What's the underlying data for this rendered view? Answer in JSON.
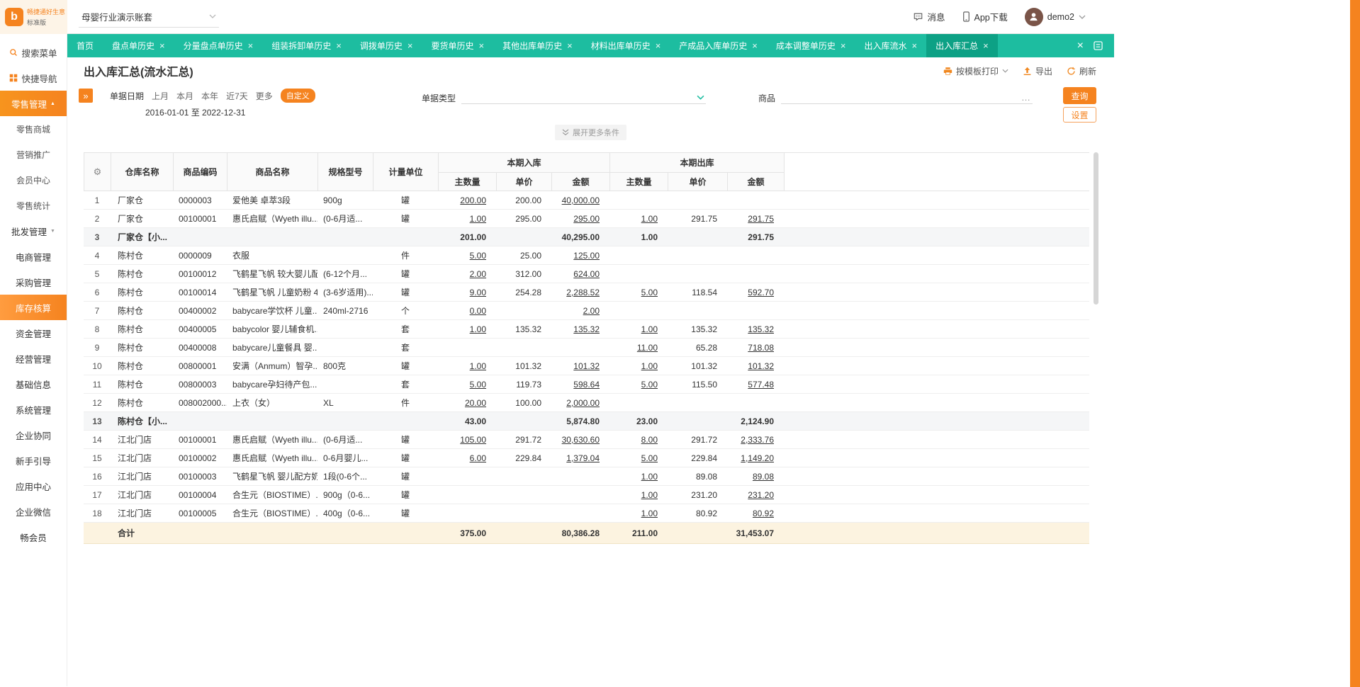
{
  "topbar": {
    "logo_title": "畅捷通好生意",
    "logo_badge": "标准版",
    "account_select": "母婴行业演示账套",
    "messages": "消息",
    "app_download": "App下载",
    "user": "demo2"
  },
  "tabs": [
    {
      "label": "首页",
      "closable": false,
      "active": false
    },
    {
      "label": "盘点单历史",
      "closable": true,
      "active": false
    },
    {
      "label": "分量盘点单历史",
      "closable": true,
      "active": false
    },
    {
      "label": "组装拆卸单历史",
      "closable": true,
      "active": false
    },
    {
      "label": "调拨单历史",
      "closable": true,
      "active": false
    },
    {
      "label": "要货单历史",
      "closable": true,
      "active": false
    },
    {
      "label": "其他出库单历史",
      "closable": true,
      "active": false
    },
    {
      "label": "材料出库单历史",
      "closable": true,
      "active": false
    },
    {
      "label": "产成品入库单历史",
      "closable": true,
      "active": false
    },
    {
      "label": "成本调整单历史",
      "closable": true,
      "active": false
    },
    {
      "label": "出入库流水",
      "closable": true,
      "active": false
    },
    {
      "label": "出入库汇总",
      "closable": true,
      "active": true
    }
  ],
  "sidebar": {
    "items": [
      {
        "label": "搜索菜单",
        "icon": "search",
        "type": "tool"
      },
      {
        "label": "快捷导航",
        "icon": "grid",
        "type": "tool"
      },
      {
        "label": "零售管理",
        "type": "group-open"
      },
      {
        "label": "零售商城",
        "type": "sub"
      },
      {
        "label": "营销推广",
        "type": "sub"
      },
      {
        "label": "会员中心",
        "type": "sub"
      },
      {
        "label": "零售统计",
        "type": "sub"
      },
      {
        "label": "批发管理",
        "type": "group-closed"
      },
      {
        "label": "电商管理",
        "type": "item"
      },
      {
        "label": "采购管理",
        "type": "item"
      },
      {
        "label": "库存核算",
        "type": "active"
      },
      {
        "label": "资金管理",
        "type": "item"
      },
      {
        "label": "经营管理",
        "type": "item"
      },
      {
        "label": "基础信息",
        "type": "item"
      },
      {
        "label": "系统管理",
        "type": "item"
      },
      {
        "label": "企业协同",
        "type": "item"
      },
      {
        "label": "新手引导",
        "type": "item"
      },
      {
        "label": "应用中心",
        "type": "item"
      },
      {
        "label": "企业微信",
        "type": "item"
      },
      {
        "label": "畅会员",
        "type": "item"
      }
    ]
  },
  "page": {
    "title": "出入库汇总(流水汇总)",
    "actions": {
      "print": "按模板打印",
      "export": "导出",
      "refresh": "刷新"
    }
  },
  "filters": {
    "date_label": "单据日期",
    "date_options": [
      "上月",
      "本月",
      "本年",
      "近7天",
      "更多"
    ],
    "custom_badge": "自定义",
    "date_range": "2016-01-01 至 2022-12-31",
    "doc_type_label": "单据类型",
    "product_label": "商品",
    "search_button": "查询",
    "settings_button": "设置",
    "expand_more": "展开更多条件"
  },
  "table": {
    "headers": {
      "warehouse": "仓库名称",
      "code": "商品编码",
      "name": "商品名称",
      "spec": "规格型号",
      "unit": "计量单位",
      "in_group": "本期入库",
      "out_group": "本期出库",
      "qty": "主数量",
      "price": "单价",
      "amount": "金额"
    },
    "rows": [
      {
        "idx": "1",
        "warehouse": "厂家仓",
        "code": "0000003",
        "name": "爱他美 卓萃3段",
        "spec": "900g",
        "unit": "罐",
        "in_qty": "200.00",
        "in_price": "200.00",
        "in_amount": "40,000.00",
        "out_qty": "",
        "out_price": "",
        "out_amount": ""
      },
      {
        "idx": "2",
        "warehouse": "厂家仓",
        "code": "00100001",
        "name": "惠氏启赋（Wyeth illu...",
        "spec": "(0-6月适...",
        "unit": "罐",
        "in_qty": "1.00",
        "in_price": "295.00",
        "in_amount": "295.00",
        "out_qty": "1.00",
        "out_price": "291.75",
        "out_amount": "291.75"
      },
      {
        "idx": "3",
        "type": "subtotal",
        "warehouse": "厂家仓【小...",
        "code": "",
        "name": "",
        "spec": "",
        "unit": "",
        "in_qty": "201.00",
        "in_price": "",
        "in_amount": "40,295.00",
        "out_qty": "1.00",
        "out_price": "",
        "out_amount": "291.75"
      },
      {
        "idx": "4",
        "warehouse": "陈村仓",
        "code": "0000009",
        "name": "衣服",
        "spec": "",
        "unit": "件",
        "in_qty": "5.00",
        "in_price": "25.00",
        "in_amount": "125.00",
        "out_qty": "",
        "out_price": "",
        "out_amount": ""
      },
      {
        "idx": "5",
        "warehouse": "陈村仓",
        "code": "00100012",
        "name": "飞鹤星飞帆 较大婴儿配...",
        "spec": "(6-12个月...",
        "unit": "罐",
        "in_qty": "2.00",
        "in_price": "312.00",
        "in_amount": "624.00",
        "out_qty": "",
        "out_price": "",
        "out_amount": ""
      },
      {
        "idx": "6",
        "warehouse": "陈村仓",
        "code": "00100014",
        "name": "飞鹤星飞帆 儿童奶粉 4...",
        "spec": "(3-6岁适用)...",
        "unit": "罐",
        "in_qty": "9.00",
        "in_price": "254.28",
        "in_amount": "2,288.52",
        "out_qty": "5.00",
        "out_price": "118.54",
        "out_amount": "592.70"
      },
      {
        "idx": "7",
        "warehouse": "陈村仓",
        "code": "00400002",
        "name": "babycare学饮杯 儿童...",
        "spec": "240ml-2716",
        "unit": "个",
        "in_qty": "0.00",
        "in_price": "",
        "in_amount": "2.00",
        "out_qty": "",
        "out_price": "",
        "out_amount": ""
      },
      {
        "idx": "8",
        "warehouse": "陈村仓",
        "code": "00400005",
        "name": "babycolor 婴儿辅食机...",
        "spec": "",
        "unit": "套",
        "in_qty": "1.00",
        "in_price": "135.32",
        "in_amount": "135.32",
        "out_qty": "1.00",
        "out_price": "135.32",
        "out_amount": "135.32"
      },
      {
        "idx": "9",
        "warehouse": "陈村仓",
        "code": "00400008",
        "name": "babycare儿童餐具 婴...",
        "spec": "",
        "unit": "套",
        "in_qty": "",
        "in_price": "",
        "in_amount": "",
        "out_qty": "11.00",
        "out_price": "65.28",
        "out_amount": "718.08"
      },
      {
        "idx": "10",
        "warehouse": "陈村仓",
        "code": "00800001",
        "name": "安满（Anmum）智孕...",
        "spec": "800克",
        "unit": "罐",
        "in_qty": "1.00",
        "in_price": "101.32",
        "in_amount": "101.32",
        "out_qty": "1.00",
        "out_price": "101.32",
        "out_amount": "101.32"
      },
      {
        "idx": "11",
        "warehouse": "陈村仓",
        "code": "00800003",
        "name": "babycare孕妇待产包...",
        "spec": "",
        "unit": "套",
        "in_qty": "5.00",
        "in_price": "119.73",
        "in_amount": "598.64",
        "out_qty": "5.00",
        "out_price": "115.50",
        "out_amount": "577.48"
      },
      {
        "idx": "12",
        "warehouse": "陈村仓",
        "code": "008002000...",
        "name": "上衣（女）",
        "spec": "XL",
        "unit": "件",
        "in_qty": "20.00",
        "in_price": "100.00",
        "in_amount": "2,000.00",
        "out_qty": "",
        "out_price": "",
        "out_amount": ""
      },
      {
        "idx": "13",
        "type": "subtotal",
        "warehouse": "陈村仓【小...",
        "code": "",
        "name": "",
        "spec": "",
        "unit": "",
        "in_qty": "43.00",
        "in_price": "",
        "in_amount": "5,874.80",
        "out_qty": "23.00",
        "out_price": "",
        "out_amount": "2,124.90"
      },
      {
        "idx": "14",
        "warehouse": "江北门店",
        "code": "00100001",
        "name": "惠氏启赋（Wyeth illu...",
        "spec": "(0-6月适...",
        "unit": "罐",
        "in_qty": "105.00",
        "in_price": "291.72",
        "in_amount": "30,630.60",
        "out_qty": "8.00",
        "out_price": "291.72",
        "out_amount": "2,333.76"
      },
      {
        "idx": "15",
        "warehouse": "江北门店",
        "code": "00100002",
        "name": "惠氏启赋（Wyeth illu...",
        "spec": "0-6月婴儿...",
        "unit": "罐",
        "in_qty": "6.00",
        "in_price": "229.84",
        "in_amount": "1,379.04",
        "out_qty": "5.00",
        "out_price": "229.84",
        "out_amount": "1,149.20"
      },
      {
        "idx": "16",
        "warehouse": "江北门店",
        "code": "00100003",
        "name": "飞鹤星飞帆 婴儿配方奶...",
        "spec": "1段(0-6个...",
        "unit": "罐",
        "in_qty": "",
        "in_price": "",
        "in_amount": "",
        "out_qty": "1.00",
        "out_price": "89.08",
        "out_amount": "89.08"
      },
      {
        "idx": "17",
        "warehouse": "江北门店",
        "code": "00100004",
        "name": "合生元（BIOSTIME）...",
        "spec": "900g（0-6...",
        "unit": "罐",
        "in_qty": "",
        "in_price": "",
        "in_amount": "",
        "out_qty": "1.00",
        "out_price": "231.20",
        "out_amount": "231.20"
      },
      {
        "idx": "18",
        "warehouse": "江北门店",
        "code": "00100005",
        "name": "合生元（BIOSTIME）...",
        "spec": "400g（0-6...",
        "unit": "罐",
        "in_qty": "",
        "in_price": "",
        "in_amount": "",
        "out_qty": "1.00",
        "out_price": "80.92",
        "out_amount": "80.92"
      }
    ],
    "total_row": {
      "label": "合计",
      "in_qty": "375.00",
      "in_amount": "80,386.28",
      "out_qty": "211.00",
      "out_amount": "31,453.07"
    }
  }
}
